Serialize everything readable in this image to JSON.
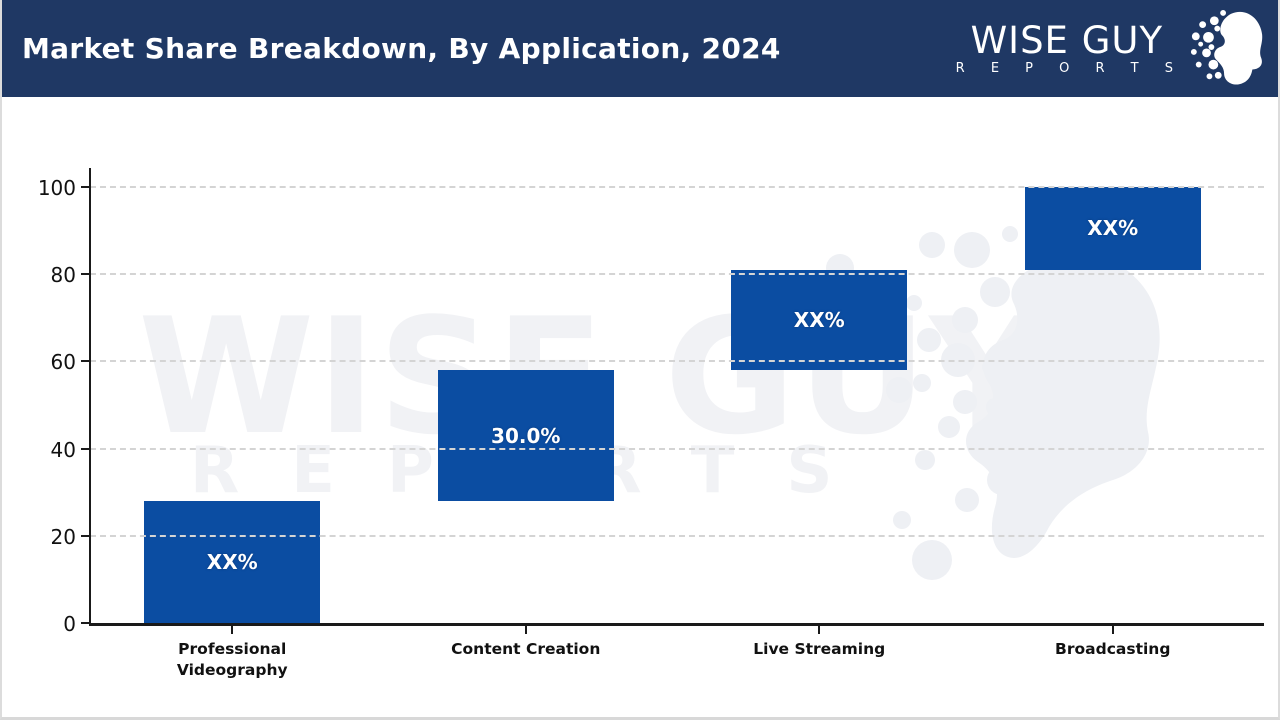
{
  "header": {
    "title": "Market Share Breakdown, By Application, 2024",
    "background_color": "#1f3864",
    "logo": {
      "primary": "WISE GUY",
      "secondary": "R E P O R T S"
    }
  },
  "watermark": {
    "primary": "WISE GUY",
    "secondary": "REPORTS"
  },
  "chart_data": {
    "type": "bar",
    "subtype": "waterfall (floating cumulative bars)",
    "title": "Market Share Breakdown, By Application, 2024",
    "xlabel": "",
    "ylabel": "",
    "ylim": [
      0,
      100
    ],
    "y_ticks": [
      0,
      20,
      40,
      60,
      80,
      100
    ],
    "grid": "horizontal dashed, drawn over bars",
    "legend": "none",
    "bar_color": "#0b4da2",
    "bar_label_color": "#ffffff",
    "categories": [
      "Professional Videography",
      "Content Creation",
      "Live Streaming",
      "Broadcasting"
    ],
    "segments": [
      {
        "category": "Professional Videography",
        "start": 0,
        "end": 28,
        "value": 28,
        "label": "XX%"
      },
      {
        "category": "Content Creation",
        "start": 28,
        "end": 58,
        "value": 30,
        "label": "30.0%"
      },
      {
        "category": "Live Streaming",
        "start": 58,
        "end": 81,
        "value": 23,
        "label": "XX%"
      },
      {
        "category": "Broadcasting",
        "start": 81,
        "end": 100,
        "value": 19,
        "label": "XX%"
      }
    ]
  }
}
